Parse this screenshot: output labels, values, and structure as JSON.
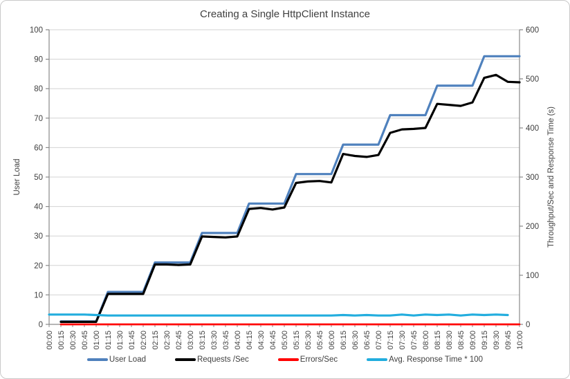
{
  "chart_data": {
    "type": "line",
    "title": "Creating a Single HttpClient Instance",
    "x_categories": [
      "00:00",
      "00:15",
      "00:30",
      "00:45",
      "01:00",
      "01:15",
      "01:30",
      "01:45",
      "02:00",
      "02:15",
      "02:30",
      "02:45",
      "03:00",
      "03:15",
      "03:30",
      "03:45",
      "04:00",
      "04:15",
      "04:30",
      "04:45",
      "05:00",
      "05:15",
      "05:30",
      "05:45",
      "06:00",
      "06:15",
      "06:30",
      "06:45",
      "07:00",
      "07:15",
      "07:30",
      "07:45",
      "08:00",
      "08:15",
      "08:30",
      "08:45",
      "09:00",
      "09:15",
      "09:30",
      "09:45",
      "10:00"
    ],
    "left_axis": {
      "label": "User Load",
      "min": 0,
      "max": 100,
      "step": 10
    },
    "right_axis": {
      "label": "Throughput/Sec and Response Time (s)",
      "min": 0,
      "max": 600,
      "step": 100
    },
    "grid": "horizontal",
    "legend_position": "bottom",
    "series": [
      {
        "name": "User Load",
        "color": "#4F81BD",
        "axis": "left",
        "line_width": 3.2,
        "start_index": 1,
        "values": [
          1,
          1,
          1,
          1,
          11,
          11,
          11,
          11,
          21,
          21,
          21,
          21,
          31,
          31,
          31,
          31,
          41,
          41,
          41,
          41,
          51,
          51,
          51,
          51,
          61,
          61,
          61,
          61,
          71,
          71,
          71,
          71,
          81,
          81,
          81,
          81,
          91,
          91,
          91,
          91
        ]
      },
      {
        "name": "Requests /Sec",
        "color": "#000000",
        "axis": "right",
        "line_width": 3.2,
        "start_index": 1,
        "values": [
          5,
          5,
          5,
          5,
          62,
          62,
          62,
          62,
          122,
          122,
          121,
          122,
          179,
          178,
          177,
          179,
          235,
          237,
          234,
          238,
          288,
          291,
          292,
          289,
          347,
          343,
          341,
          345,
          390,
          397,
          398,
          400,
          449,
          447,
          445,
          452,
          502,
          508,
          494,
          493
        ]
      },
      {
        "name": "Errors/Sec",
        "color": "#FF0000",
        "axis": "right",
        "line_width": 2.8,
        "start_index": 1,
        "values": [
          0,
          0,
          0,
          0,
          0,
          0,
          0,
          0,
          0,
          0,
          0,
          0,
          0,
          0,
          0,
          0,
          0,
          0,
          0,
          0,
          0,
          0,
          0,
          0,
          0,
          0,
          0,
          0,
          0,
          0,
          0,
          0,
          0,
          0,
          0,
          0,
          0,
          0,
          0,
          0
        ]
      },
      {
        "name": "Avg. Response Time * 100",
        "color": "#22ADDE",
        "axis": "right",
        "line_width": 3.2,
        "start_index": 0,
        "values": [
          20,
          20,
          20,
          20,
          19,
          18,
          18,
          18,
          18,
          18,
          18,
          18,
          18,
          18,
          18,
          18,
          18,
          18,
          18,
          18,
          18,
          18,
          18,
          18,
          18,
          19,
          18,
          19,
          18,
          18,
          20,
          18,
          20,
          19,
          20,
          18,
          20,
          19,
          20,
          19
        ]
      }
    ],
    "colors": {
      "gridline": "#d3d3d3",
      "axis_line": "#898989",
      "tick_text": "#3f3f3f"
    }
  }
}
